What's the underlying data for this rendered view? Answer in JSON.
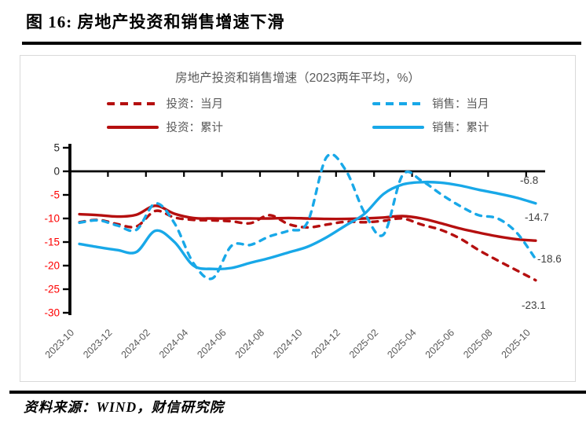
{
  "figure_title": "图 16:  房地产投资和销售增速下滑",
  "chart": {
    "title": "房地产投资和销售增速（2023两年平均，%）",
    "legend": [
      {
        "label": "投资：当月",
        "color": "#b50f0f",
        "style": "dashed"
      },
      {
        "label": "销售：当月",
        "color": "#18a8e8",
        "style": "dashed"
      },
      {
        "label": "投资：累计",
        "color": "#b50f0f",
        "style": "solid"
      },
      {
        "label": "销售：累计",
        "color": "#18a8e8",
        "style": "solid"
      }
    ]
  },
  "chart_data": {
    "type": "line",
    "title": "房地产投资和销售增速（2023两年平均，%）",
    "x": [
      "2023-10",
      "2023-11",
      "2023-12",
      "2024-01",
      "2024-02",
      "2024-03",
      "2024-04",
      "2024-05",
      "2024-06",
      "2024-07",
      "2024-08",
      "2024-09",
      "2024-10",
      "2024-11",
      "2024-12",
      "2025-01",
      "2025-02",
      "2025-03",
      "2025-04",
      "2025-05",
      "2025-06",
      "2025-07",
      "2025-08",
      "2025-09",
      "2025-10"
    ],
    "x_tick_labels": [
      "2023-10",
      "2023-12",
      "2024-02",
      "2024-04",
      "2024-06",
      "2024-08",
      "2024-10",
      "2024-12",
      "2025-02",
      "2025-04",
      "2025-06",
      "2025-08",
      "2025-10"
    ],
    "ylim": [
      -30,
      5
    ],
    "yticks": [
      5,
      0,
      -5,
      -10,
      -15,
      -20,
      -25,
      -30
    ],
    "grid": false,
    "legend_position": "top",
    "smoothed": true,
    "axis_colors": {
      "negative_tick_text": "#fe0000",
      "nonnegative_tick_text": "#262626",
      "x_tick_text": "#595959",
      "axis_line": "#000000"
    },
    "series": [
      {
        "name": "投资：当月",
        "color": "#b50f0f",
        "style": "dashed",
        "values": [
          -10.8,
          -10.3,
          -11.2,
          -11.7,
          -8.4,
          -9.8,
          -10.3,
          -10.4,
          -10.6,
          -11.0,
          -9.3,
          -11.2,
          -11.9,
          -11.3,
          -10.7,
          -10.8,
          -10.5,
          -10.0,
          -11.3,
          -12.4,
          -14.2,
          -16.7,
          -18.9,
          -21.0,
          -23.1
        ]
      },
      {
        "name": "投资：累计",
        "color": "#b50f0f",
        "style": "solid",
        "values": [
          -9.1,
          -9.3,
          -9.6,
          -9.2,
          -7.3,
          -9.0,
          -9.9,
          -10.0,
          -10.0,
          -10.0,
          -10.0,
          -9.9,
          -10.0,
          -10.1,
          -10.1,
          -10.0,
          -9.8,
          -9.5,
          -10.0,
          -11.0,
          -12.1,
          -13.0,
          -13.8,
          -14.4,
          -14.7
        ]
      },
      {
        "name": "销售：当月",
        "color": "#18a8e8",
        "style": "dashed",
        "values": [
          -10.9,
          -10.4,
          -11.5,
          -12.4,
          -6.8,
          -11.0,
          -19.5,
          -22.7,
          -15.8,
          -15.6,
          -13.8,
          -12.6,
          -10.8,
          3.0,
          0.3,
          -8.8,
          -13.4,
          -0.8,
          -2.0,
          -4.8,
          -7.3,
          -9.3,
          -10.0,
          -13.0,
          -18.6
        ]
      },
      {
        "name": "销售：累计",
        "color": "#18a8e8",
        "style": "solid",
        "values": [
          -15.4,
          -16.1,
          -16.7,
          -17.1,
          -12.6,
          -15.0,
          -20.0,
          -20.7,
          -20.5,
          -19.4,
          -18.4,
          -17.2,
          -16.0,
          -14.0,
          -11.5,
          -9.0,
          -4.8,
          -2.8,
          -2.3,
          -2.4,
          -3.0,
          -3.9,
          -4.7,
          -5.6,
          -6.8
        ]
      }
    ],
    "end_labels": [
      {
        "text": "-6.8",
        "series": "销售：累计"
      },
      {
        "text": "-14.7",
        "series": "投资：累计"
      },
      {
        "text": "-18.6",
        "series": "销售：当月"
      },
      {
        "text": "-23.1",
        "series": "投资：当月"
      }
    ]
  },
  "source_line": "资料来源：WIND，财信研究院"
}
